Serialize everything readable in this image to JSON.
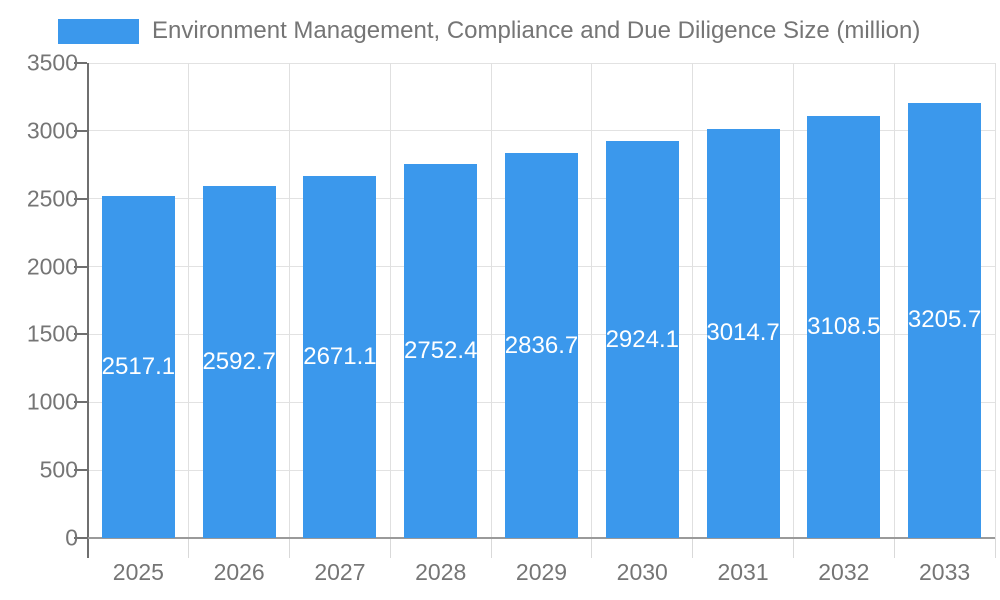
{
  "legend": {
    "label": "Environment Management, Compliance and Due Diligence Size (million)"
  },
  "chart_data": {
    "type": "bar",
    "title": "Environment Management, Compliance and Due Diligence Size (million)",
    "categories": [
      "2025",
      "2026",
      "2027",
      "2028",
      "2029",
      "2030",
      "2031",
      "2032",
      "2033"
    ],
    "values": [
      2517.1,
      2592.7,
      2671.1,
      2752.4,
      2836.7,
      2924.1,
      3014.7,
      3108.5,
      3205.7
    ],
    "xlabel": "",
    "ylabel": "",
    "ylim": [
      0,
      3500
    ],
    "ytick_step": 500,
    "yticks": [
      "0",
      "500",
      "1000",
      "1500",
      "2000",
      "2500",
      "3000",
      "3500"
    ],
    "grid": true,
    "legend_position": "top-left",
    "value_labels": "inside-center-white"
  },
  "colors": {
    "bar": "#3b98ec",
    "value_label": "#ffffff",
    "axis_text": "#757575",
    "gridline": "#e2e2e2",
    "baseline": "#9a9a9a",
    "axis_line": "#6f6f6f",
    "background": "#ffffff"
  }
}
